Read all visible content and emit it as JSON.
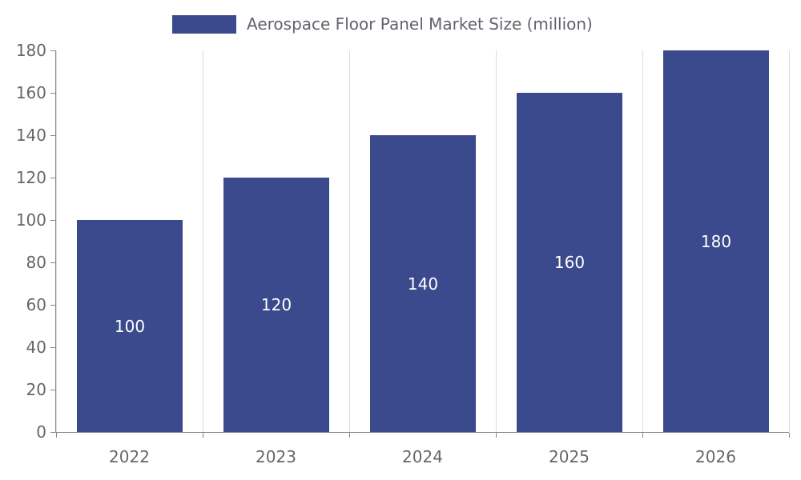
{
  "chart_data": {
    "type": "bar",
    "title": "Aerospace Floor Panel Market Size (million)",
    "categories": [
      "2022",
      "2023",
      "2024",
      "2025",
      "2026"
    ],
    "values": [
      100,
      120,
      140,
      160,
      180
    ],
    "ylim": [
      0,
      180
    ],
    "ytick_step": 20,
    "ytick_labels": [
      "0",
      "20",
      "40",
      "60",
      "80",
      "100",
      "120",
      "140",
      "160",
      "180"
    ],
    "bar_color": "#3A4A8C",
    "value_label_color": "#ffffff",
    "axis_text_color": "#666666",
    "grid": "vertical-splitlines",
    "legend_position": "top"
  }
}
